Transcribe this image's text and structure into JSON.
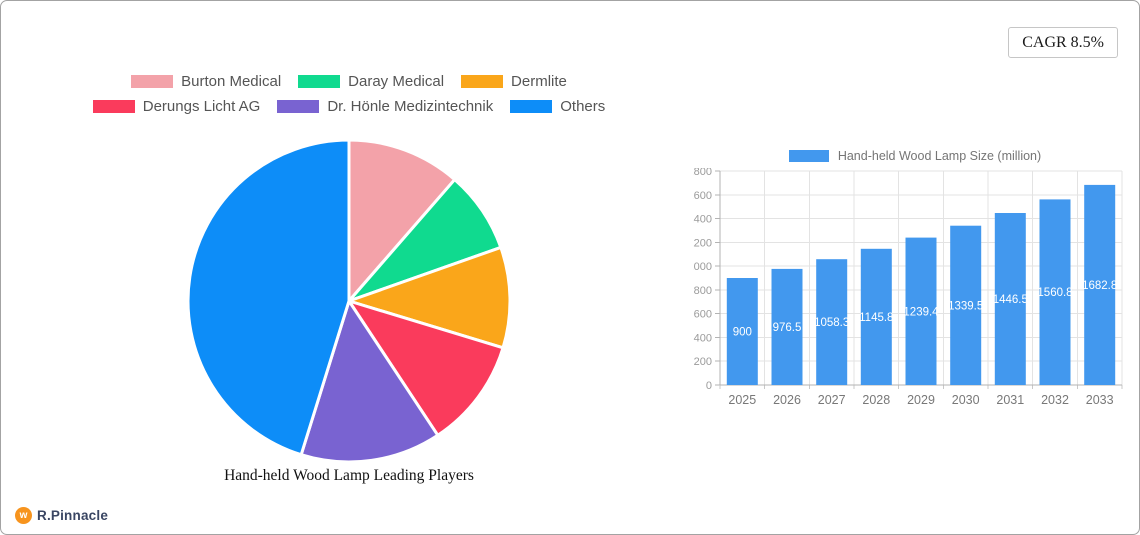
{
  "badge": {
    "label": "CAGR 8.5%"
  },
  "brand": {
    "name": "R.Pinnacle",
    "icon": "brand-circle-w-icon",
    "icon_glyph": "w",
    "icon_color": "#f7941e",
    "text_color": "#3a4663"
  },
  "chart_data": [
    {
      "type": "pie",
      "title": "Hand-held Wood Lamp Leading Players",
      "legend_position": "top",
      "unit": "percent-of-market (estimated from slice angles)",
      "slices": [
        {
          "label": "Burton Medical",
          "value": 11.4,
          "color": "#f3a2a9"
        },
        {
          "label": "Daray Medical",
          "value": 8.2,
          "color": "#10da8f"
        },
        {
          "label": "Dermlite",
          "value": 10.1,
          "color": "#faa61a"
        },
        {
          "label": "Derungs Licht AG",
          "value": 11.0,
          "color": "#fa3b5c"
        },
        {
          "label": "Dr. Hönle Medizintechnik",
          "value": 14.1,
          "color": "#7963d1"
        },
        {
          "label": "Others",
          "value": 45.2,
          "color": "#0d8df8"
        }
      ],
      "legend_rows": [
        [
          0,
          1,
          2
        ],
        [
          3,
          4,
          5
        ]
      ],
      "start_angle_deg": 0,
      "direction": "clockwise"
    },
    {
      "type": "bar",
      "legend": "Hand-held Wood Lamp Size (million)",
      "categories": [
        "2025",
        "2026",
        "2027",
        "2028",
        "2029",
        "2030",
        "2031",
        "2032",
        "2033"
      ],
      "values": [
        900,
        976.5,
        1058.3,
        1145.8,
        1239.4,
        1339.5,
        1446.5,
        1560.8,
        1682.8
      ],
      "value_labels": [
        "900",
        "976.5",
        "1058.3",
        "1145.8",
        "1239.4",
        "1339.5",
        "1446.5",
        "1560.8",
        "1682.8"
      ],
      "bar_color": "#4298ee",
      "ylim": [
        0,
        1800
      ],
      "ytick_step": 200,
      "grid": true,
      "legend_position": "top",
      "axis_color": "#b3b3b3",
      "grid_color": "#e3e3e3",
      "tick_label_color": "#9b9b9b",
      "category_label_color": "#787878"
    }
  ]
}
